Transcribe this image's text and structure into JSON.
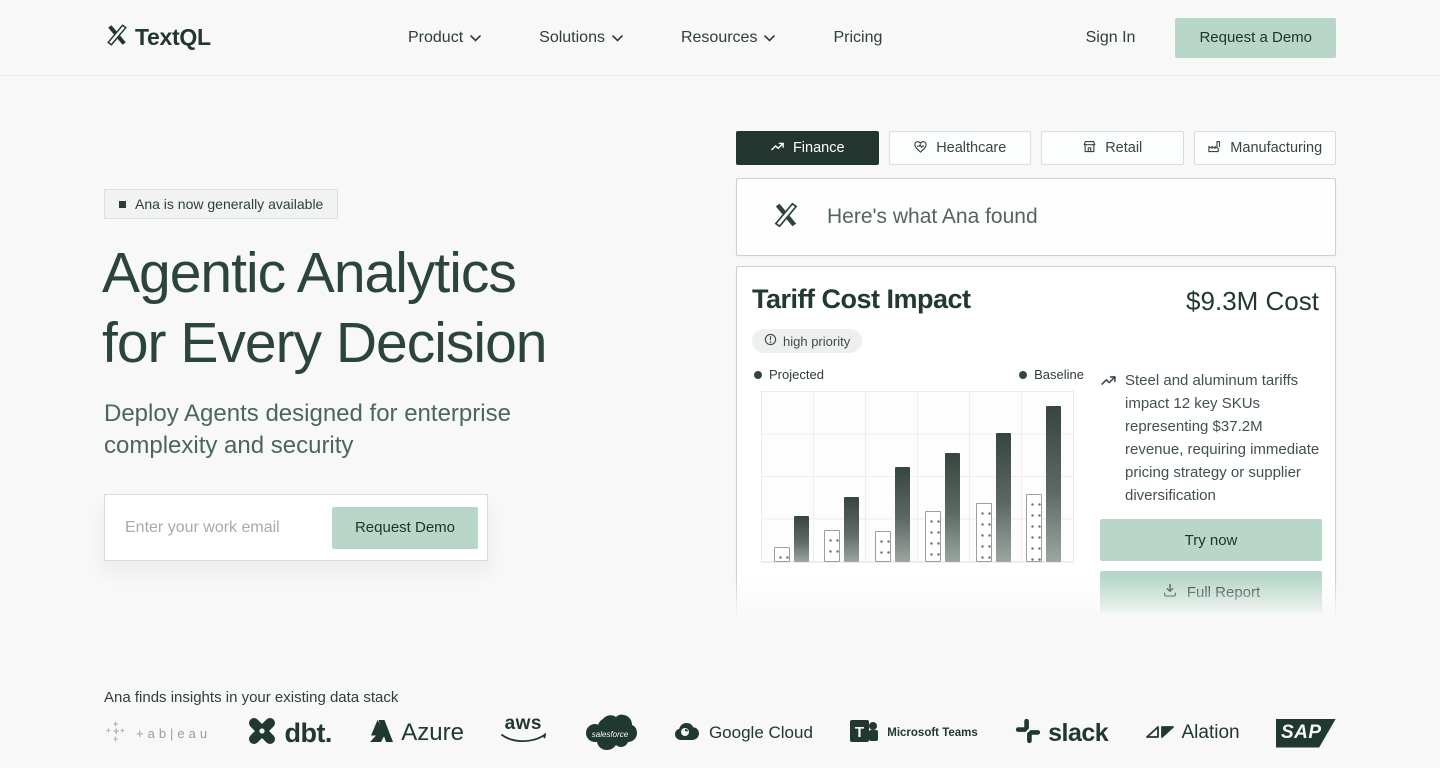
{
  "brand": {
    "name": "TextQL"
  },
  "nav": {
    "items": [
      {
        "label": "Product",
        "has_dropdown": true
      },
      {
        "label": "Solutions",
        "has_dropdown": true
      },
      {
        "label": "Resources",
        "has_dropdown": true
      },
      {
        "label": "Pricing",
        "has_dropdown": false
      }
    ],
    "sign_in": "Sign In",
    "request_demo": "Request a Demo"
  },
  "hero": {
    "badge": "Ana is now generally available",
    "title_line1": "Agentic Analytics",
    "title_line2": "for Every Decision",
    "subtitle": "Deploy Agents designed for enterprise complexity and security",
    "email_placeholder": "Enter your work email",
    "email_button": "Request Demo"
  },
  "demo_panel": {
    "tabs": [
      {
        "label": "Finance",
        "icon": "trending-up-icon",
        "active": true
      },
      {
        "label": "Healthcare",
        "icon": "heart-pulse-icon",
        "active": false
      },
      {
        "label": "Retail",
        "icon": "store-icon",
        "active": false
      },
      {
        "label": "Manufacturing",
        "icon": "factory-icon",
        "active": false
      }
    ],
    "ana_header": "Here's what Ana found",
    "insight": {
      "title": "Tariff Cost Impact",
      "cost": "$9.3M Cost",
      "priority": "high priority",
      "description": "Steel and aluminum tariffs impact 12 key SKUs representing $37.2M revenue, requiring immediate pricing strategy or supplier diversification",
      "try_button": "Try now",
      "report_button": "Full Report"
    }
  },
  "chart_data": {
    "type": "bar",
    "title": "Tariff Cost Impact",
    "legend_position": "top",
    "grid": true,
    "categories": [
      "",
      "",
      "",
      "",
      "",
      ""
    ],
    "ylim": [
      0,
      100
    ],
    "unit": "percent-of-plot-height (no axis labels shown)",
    "series": [
      {
        "name": "Projected",
        "style": "dotted-light",
        "values": [
          9,
          19,
          18,
          30,
          35,
          40
        ]
      },
      {
        "name": "Baseline",
        "style": "solid-dark-gradient",
        "values": [
          27,
          38,
          56,
          64,
          76,
          92
        ]
      }
    ]
  },
  "footer": {
    "tagline": "Ana finds insights in your existing data stack",
    "logos": [
      {
        "id": "tableau",
        "text": "+ab|eau"
      },
      {
        "id": "dbt",
        "text": "dbt."
      },
      {
        "id": "azure",
        "text": "Azure"
      },
      {
        "id": "aws",
        "text": "aws"
      },
      {
        "id": "salesforce",
        "text": "salesforce"
      },
      {
        "id": "google-cloud",
        "text": "Google Cloud"
      },
      {
        "id": "microsoft-teams",
        "text": "Microsoft Teams"
      },
      {
        "id": "slack",
        "text": "slack"
      },
      {
        "id": "alation",
        "text": "Alation"
      },
      {
        "id": "sap",
        "text": "SAP"
      }
    ]
  },
  "colors": {
    "page_bg": "#f7f8f7",
    "dark_green": "#203831",
    "heading": "#2b443c",
    "mint_accent": "#b8d7c9",
    "card_border": "#c9d2ce",
    "muted_text": "#4b675d",
    "bar_dark_top": "#37453f",
    "bar_dark_bottom": "#9ba69f",
    "grid_line": "#f1edeb",
    "pill_bg": "#edf0ef"
  }
}
